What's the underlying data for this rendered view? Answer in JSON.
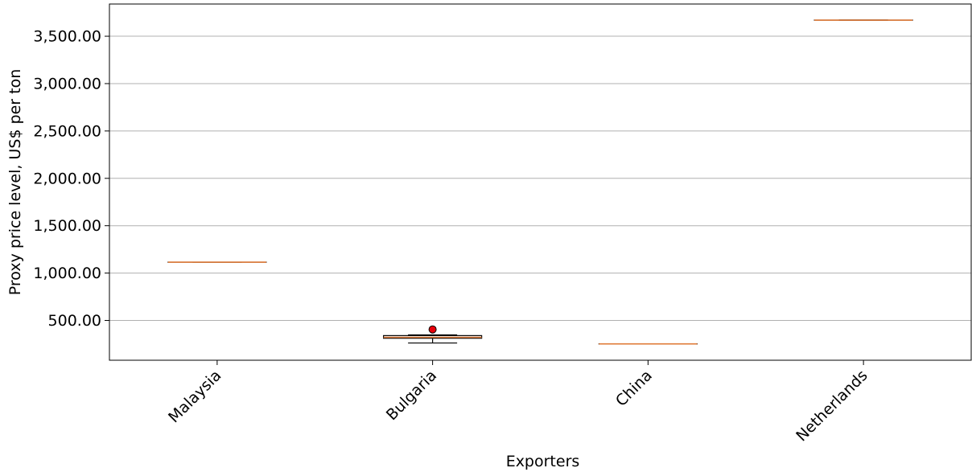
{
  "chart_data": {
    "type": "box",
    "xlabel": "Exporters",
    "ylabel": "Proxy price level, US$ per ton",
    "ylim": [
      80,
      3840
    ],
    "yticks": [
      500,
      1000,
      1500,
      2000,
      2500,
      3000,
      3500
    ],
    "ytick_labels": [
      "500.00",
      "1,000.00",
      "1,500.00",
      "2,000.00",
      "2,500.00",
      "3,000.00",
      "3,500.00"
    ],
    "grid": "horizontal",
    "categories": [
      "Malaysia",
      "Bulgaria",
      "China",
      "Netherlands"
    ],
    "boxes": [
      {
        "category": "Malaysia",
        "whisker_low": 1115,
        "q1": 1115,
        "median": 1115,
        "q3": 1115,
        "whisker_high": 1115,
        "outliers": []
      },
      {
        "category": "Bulgaria",
        "whisker_low": 262,
        "q1": 312,
        "median": 322,
        "q3": 340,
        "whisker_high": 348,
        "outliers": [
          405
        ]
      },
      {
        "category": "China",
        "whisker_low": 252,
        "q1": 252,
        "median": 252,
        "q3": 252,
        "whisker_high": 252,
        "outliers": []
      },
      {
        "category": "Netherlands",
        "whisker_low": 3670,
        "q1": 3670,
        "median": 3670,
        "q3": 3670,
        "whisker_high": 3670,
        "outliers": []
      }
    ],
    "colors": {
      "median": "#e07b39",
      "outlier_fill": "#e8000b",
      "box": "#000000",
      "grid": "#b0b0b0"
    }
  }
}
